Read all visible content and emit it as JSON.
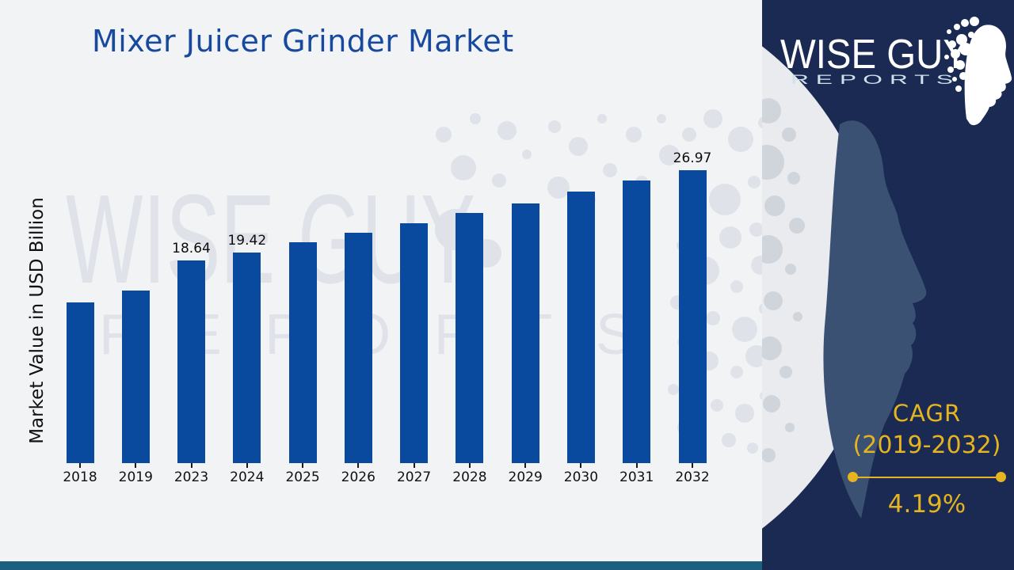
{
  "page": {
    "background": "#f2f3f5",
    "footer_bar_color": "#1d5f7e"
  },
  "header": {
    "title": "Mixer Juicer Grinder Market",
    "title_color": "#17499e"
  },
  "watermark": {
    "line1": "WISE GUY",
    "line2": "REPORTS",
    "color": "#dfe2e8"
  },
  "brand_panel": {
    "background": "#1a2a52",
    "logo_line1": "WISE GUY",
    "logo_line2": "R E P O R T S",
    "face_color": "#3a5173",
    "accent": "#e6b41f",
    "cagr_label": "CAGR",
    "cagr_range": "(2019-2032)",
    "cagr_value": "4.19%"
  },
  "chart_data": {
    "type": "bar",
    "title": "Mixer Juicer Grinder Market",
    "xlabel": "",
    "ylabel": "Market Value in USD Billion",
    "bar_color": "#0a4a9e",
    "grid": false,
    "legend": null,
    "ylim": [
      0,
      30
    ],
    "categories": [
      "2018",
      "2019",
      "2023",
      "2024",
      "2025",
      "2026",
      "2027",
      "2028",
      "2029",
      "2030",
      "2031",
      "2032"
    ],
    "values": [
      14.8,
      15.9,
      18.64,
      19.42,
      20.3,
      21.2,
      22.1,
      23.0,
      23.9,
      25.0,
      26.0,
      26.97
    ],
    "data_labels": [
      null,
      null,
      "18.64",
      "19.42",
      null,
      null,
      null,
      null,
      null,
      null,
      null,
      "26.97"
    ]
  }
}
